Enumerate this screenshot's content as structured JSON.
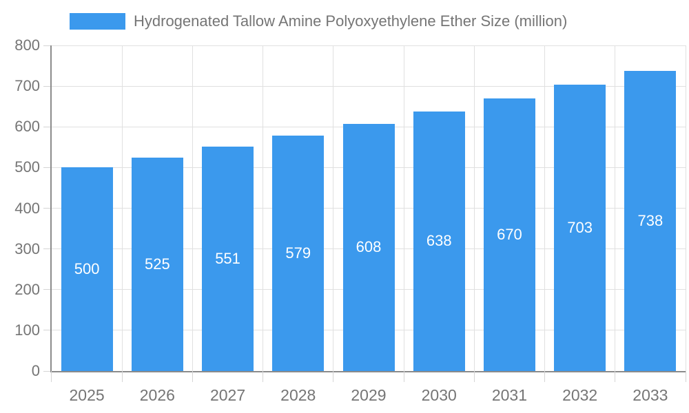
{
  "legend": {
    "label": "Hydrogenated Tallow Amine Polyoxyethylene Ether Size (million)"
  },
  "chart_data": {
    "type": "bar",
    "title": "Hydrogenated Tallow Amine Polyoxyethylene Ether Size (million)",
    "categories": [
      "2025",
      "2026",
      "2027",
      "2028",
      "2029",
      "2030",
      "2031",
      "2032",
      "2033"
    ],
    "values": [
      500,
      525,
      551,
      579,
      608,
      638,
      670,
      703,
      738
    ],
    "xlabel": "",
    "ylabel": "",
    "ylim": [
      0,
      800
    ],
    "ytick_step": 100,
    "ytick_labels": [
      "0",
      "100",
      "200",
      "300",
      "400",
      "500",
      "600",
      "700",
      "800"
    ],
    "grid": true,
    "legend_position": "top-left",
    "bar_labels_shown": true,
    "colors": {
      "bar": "#3B99ED",
      "axis_line": "#8B8B8B",
      "gridline": "#E0E0E0",
      "tick": "#D4D4D4",
      "axis_text": "#757575",
      "bar_label_text": "#FFFFFF",
      "background": "#FFFFFF"
    }
  }
}
